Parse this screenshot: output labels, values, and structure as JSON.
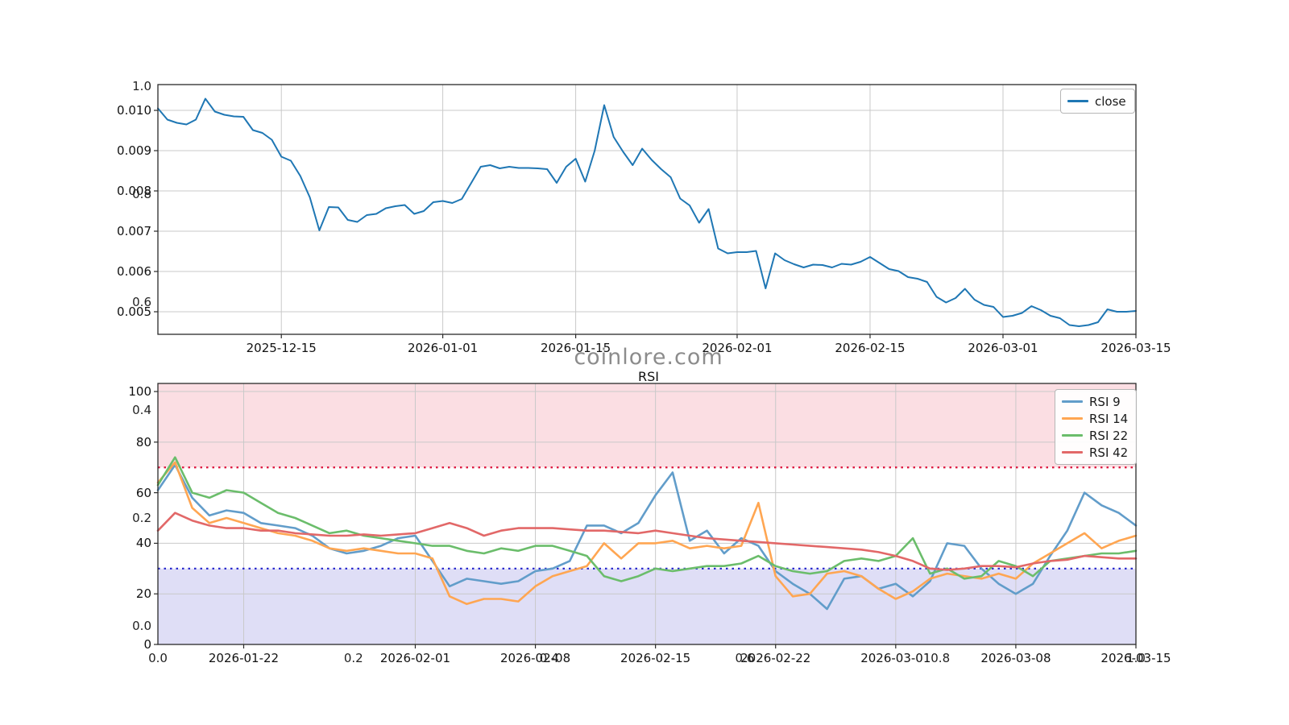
{
  "watermark": "coinlore.com",
  "chart_data": [
    {
      "type": "line",
      "title": "",
      "xlabel": "",
      "ylabel": "",
      "grid": true,
      "legend_position": "upper right",
      "date_start": "2025-12-02",
      "date_end": "2026-03-15",
      "frequency": "daily",
      "ylim": [
        0.00444,
        0.01064
      ],
      "yticks": [
        {
          "v": 0.005,
          "label": "0.005"
        },
        {
          "v": 0.006,
          "label": "0.006"
        },
        {
          "v": 0.007,
          "label": "0.007"
        },
        {
          "v": 0.008,
          "label": "0.008"
        },
        {
          "v": 0.009,
          "label": "0.009"
        },
        {
          "v": 0.01,
          "label": "0.010"
        }
      ],
      "xticks": [
        "2025-12-15",
        "2026-01-01",
        "2026-01-15",
        "2026-02-01",
        "2026-02-15",
        "2026-03-01",
        "2026-03-15"
      ],
      "series": [
        {
          "name": "close",
          "color": "#1f77b4",
          "width": 2,
          "values": [
            0.01005,
            0.00977,
            0.00969,
            0.00965,
            0.00977,
            0.01029,
            0.00997,
            0.00989,
            0.00985,
            0.00984,
            0.00951,
            0.00944,
            0.00927,
            0.00885,
            0.00875,
            0.00837,
            0.00784,
            0.00702,
            0.0076,
            0.00759,
            0.00728,
            0.00723,
            0.0074,
            0.00743,
            0.00757,
            0.00762,
            0.00765,
            0.00743,
            0.0075,
            0.00772,
            0.00775,
            0.0077,
            0.0078,
            0.0082,
            0.0086,
            0.00864,
            0.00856,
            0.0086,
            0.00857,
            0.00857,
            0.00856,
            0.00854,
            0.0082,
            0.0086,
            0.0088,
            0.00823,
            0.009,
            0.01013,
            0.00934,
            0.00897,
            0.00864,
            0.00905,
            0.00877,
            0.00854,
            0.00834,
            0.00781,
            0.00764,
            0.00721,
            0.00755,
            0.00657,
            0.00645,
            0.00648,
            0.00648,
            0.00651,
            0.00558,
            0.00645,
            0.00628,
            0.00618,
            0.0061,
            0.00617,
            0.00616,
            0.0061,
            0.00619,
            0.00617,
            0.00624,
            0.00636,
            0.00621,
            0.00606,
            0.00601,
            0.00586,
            0.00582,
            0.00574,
            0.00537,
            0.00523,
            0.00534,
            0.00557,
            0.0053,
            0.00517,
            0.00512,
            0.00487,
            0.0049,
            0.00497,
            0.00514,
            0.00504,
            0.0049,
            0.00484,
            0.00467,
            0.00464,
            0.00467,
            0.00474,
            0.00506,
            0.005,
            0.005,
            0.00502
          ]
        }
      ]
    },
    {
      "type": "line",
      "title": "RSI",
      "xlabel": "",
      "ylabel": "",
      "grid": true,
      "legend_position": "upper right",
      "date_start": "2026-01-17",
      "date_end": "2026-03-15",
      "frequency": "daily",
      "ylim": [
        0,
        103.2
      ],
      "overbought_level": 70,
      "oversold_level": 30,
      "yticks": [
        {
          "v": 0,
          "label": "0"
        },
        {
          "v": 20,
          "label": "20"
        },
        {
          "v": 40,
          "label": "40"
        },
        {
          "v": 60,
          "label": "60"
        },
        {
          "v": 80,
          "label": "80"
        },
        {
          "v": 100,
          "label": "100"
        }
      ],
      "xticks": [
        "2026-01-22",
        "2026-02-01",
        "2026-02-08",
        "2026-02-15",
        "2026-02-22",
        "2026-03-01",
        "2026-03-08",
        "2026-03-15"
      ],
      "series": [
        {
          "name": "RSI 9",
          "color": "#629dca",
          "width": 2.6,
          "values": [
            61,
            71,
            58,
            51,
            53,
            52,
            48,
            47,
            46,
            43,
            38,
            36,
            37,
            39,
            42,
            43,
            33,
            23,
            26,
            25,
            24,
            25,
            29,
            30,
            33,
            47,
            47,
            44,
            48,
            59,
            68,
            41,
            45,
            36,
            42,
            39,
            29,
            24,
            20,
            14,
            26,
            27,
            22,
            24,
            19,
            25,
            40,
            39,
            30,
            24,
            20,
            24,
            35,
            45,
            60,
            55,
            52,
            47
          ]
        },
        {
          "name": "RSI 14",
          "color": "#ffa652",
          "width": 2.6,
          "values": [
            64,
            72,
            54,
            48,
            50,
            48,
            46,
            44,
            43,
            41,
            38,
            37,
            38,
            37,
            36,
            36,
            34,
            19,
            16,
            18,
            18,
            17,
            23,
            27,
            29,
            31,
            40,
            34,
            40,
            40,
            41,
            38,
            39,
            38,
            39,
            56,
            27,
            19,
            20,
            28,
            29,
            27,
            22,
            18,
            21,
            26,
            28,
            27,
            26,
            28,
            26,
            32,
            36,
            40,
            44,
            38,
            41,
            43
          ]
        },
        {
          "name": "RSI 22",
          "color": "#6bbd6b",
          "width": 2.6,
          "values": [
            63,
            74,
            60,
            58,
            61,
            60,
            56,
            52,
            50,
            47,
            44,
            45,
            43,
            42,
            41,
            40,
            39,
            39,
            37,
            36,
            38,
            37,
            39,
            39,
            37,
            35,
            27,
            25,
            27,
            30,
            29,
            30,
            31,
            31,
            32,
            35,
            31,
            29,
            28,
            29,
            33,
            34,
            33,
            35,
            42,
            28,
            30,
            26,
            27,
            33,
            31,
            27,
            33,
            34,
            35,
            36,
            36,
            37
          ]
        },
        {
          "name": "RSI 42",
          "color": "#e26868",
          "width": 2.6,
          "values": [
            45,
            52,
            49,
            47,
            46,
            46,
            45,
            45,
            44,
            43.5,
            43,
            43,
            43.5,
            43,
            43.5,
            44,
            46,
            48,
            46,
            43,
            45,
            46,
            46,
            46,
            45.5,
            45,
            45,
            44.5,
            44,
            45,
            44,
            43,
            42,
            41.5,
            41,
            40.5,
            40,
            39.5,
            39,
            38.5,
            38,
            37.5,
            36.5,
            35,
            33,
            30,
            29.5,
            30,
            31,
            31,
            30.5,
            32,
            33,
            33.5,
            35,
            34.5,
            34,
            34
          ]
        }
      ]
    }
  ],
  "ghost_axis": {
    "y_labels": [
      "1.0",
      "0.8",
      "0.6",
      "0.4",
      "0.2",
      "0.0"
    ],
    "x_labels": [
      "0.0",
      "0.2",
      "0.4",
      "0.6",
      "0.8",
      "1.0"
    ]
  },
  "colors": {
    "close_line": "#1f77b4",
    "rsi9": "#629dca",
    "rsi14": "#ffa652",
    "rsi22": "#6bbd6b",
    "rsi42": "#e26868",
    "overbought_dotted": "#dc143c",
    "oversold_dotted": "#2323cb",
    "overbought_band": "#fbdee3",
    "oversold_band": "#dfdef6",
    "gridline": "#c9c9c9",
    "spine": "#2a2a2a",
    "watermark": "#8c8c8c"
  }
}
